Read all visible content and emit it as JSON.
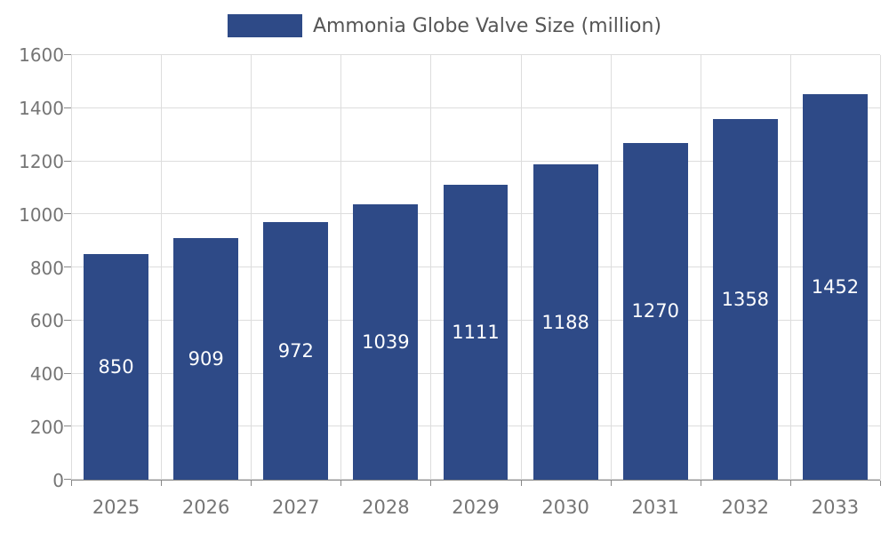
{
  "chart_data": {
    "type": "bar",
    "title": "Ammonia Globe Valve Size (million)",
    "categories": [
      "2025",
      "2026",
      "2027",
      "2028",
      "2029",
      "2030",
      "2031",
      "2032",
      "2033"
    ],
    "values": [
      850,
      909,
      972,
      1039,
      1111,
      1188,
      1270,
      1358,
      1452
    ],
    "xlabel": "",
    "ylabel": "",
    "ylim": [
      0,
      1600
    ],
    "yticks": [
      0,
      200,
      400,
      600,
      800,
      1000,
      1200,
      1400,
      1600
    ],
    "grid": true,
    "legend_position": "top",
    "bar_color": "#2e4a87",
    "grid_color": "#dddddd",
    "axis_color": "#888888",
    "tick_label_color": "#757575",
    "legend_text_color": "#555555",
    "bar_label_color": "#ffffff"
  }
}
